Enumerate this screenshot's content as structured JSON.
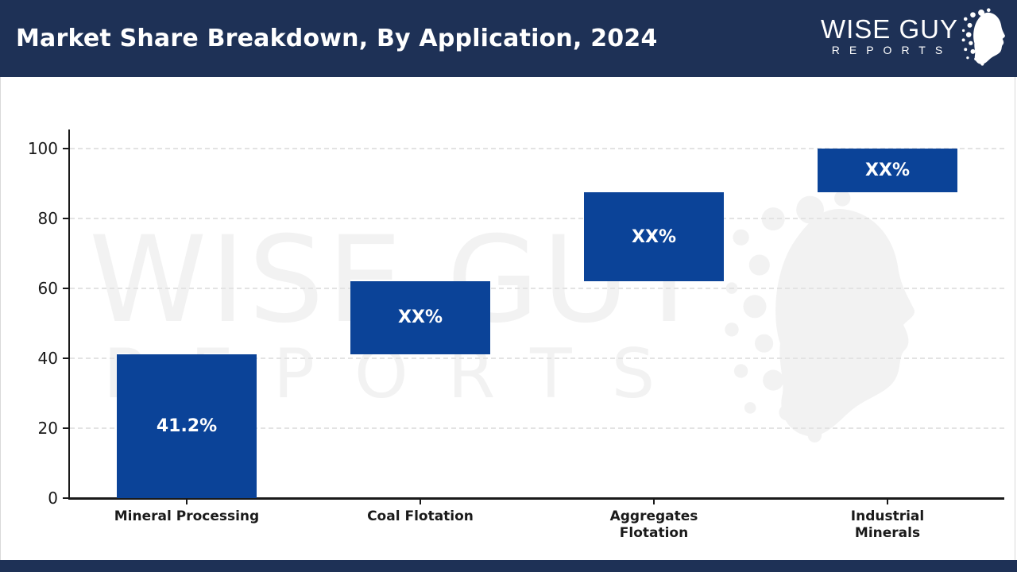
{
  "header": {
    "title": "Market Share Breakdown, By Application, 2024",
    "logo": {
      "line1": "WISE GUY",
      "line2": "REPORTS"
    }
  },
  "watermark": {
    "line1": "WISE GUY",
    "line2": "REPORTS"
  },
  "chart_data": {
    "type": "bar",
    "variant": "waterfall",
    "title": "Market Share Breakdown, By Application, 2024",
    "categories": [
      "Mineral Processing",
      "Coal Flotation",
      "Aggregates Flotation",
      "Industrial Minerals"
    ],
    "category_display_lines": [
      [
        "Mineral Processing"
      ],
      [
        "Coal Flotation"
      ],
      [
        "Aggregates",
        "Flotation"
      ],
      [
        "Industrial",
        "Minerals"
      ]
    ],
    "segments": [
      {
        "category": "Mineral Processing",
        "start": 0,
        "end": 41.2,
        "label": "41.2%"
      },
      {
        "category": "Coal Flotation",
        "start": 41.2,
        "end": 62.0,
        "label": "XX%"
      },
      {
        "category": "Aggregates Flotation",
        "start": 62.0,
        "end": 87.4,
        "label": "XX%"
      },
      {
        "category": "Industrial Minerals",
        "start": 87.4,
        "end": 100,
        "label": "XX%"
      }
    ],
    "yticks": [
      0,
      20,
      40,
      60,
      80,
      100
    ],
    "ylim": [
      0,
      105.5
    ],
    "xlabel": "",
    "ylabel": "",
    "grid": "horizontal-dashed",
    "legend": "none",
    "bar_color": "#0b4398",
    "bar_label_color": "#ffffff"
  },
  "colors": {
    "header_bg": "#1e3156",
    "footer_bg": "#1e3156",
    "watermark": "#f2f2f2",
    "grid": "#e3e3e3",
    "axis": "#1a1a1a",
    "card_border": "#d9d9d9"
  }
}
